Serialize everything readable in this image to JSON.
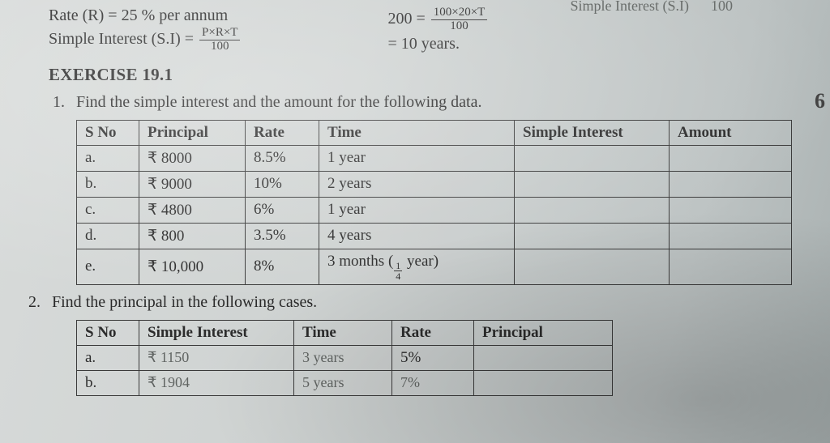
{
  "top": {
    "left_line1": "Rate (R) = 25 % per annum",
    "left_line2_prefix": "Simple Interest (S.I) = ",
    "left_frac_num": "P×R×T",
    "left_frac_den": "100",
    "right_partial_top": "Simple Interest (S.I)",
    "right_partial_num": "100",
    "right_line1_prefix": "200 = ",
    "right_frac_num": "100×20×T",
    "right_frac_den": "100",
    "right_line2": "= 10 years."
  },
  "exercise_heading": "EXERCISE 19.1",
  "q1": {
    "num": "1.",
    "text": "Find the simple interest and the amount for the following data."
  },
  "table1": {
    "headers": [
      "S No",
      "Principal",
      "Rate",
      "Time",
      "Simple Interest",
      "Amount"
    ],
    "rows": [
      [
        "a.",
        "₹ 8000",
        "8.5%",
        "1 year",
        "",
        ""
      ],
      [
        "b.",
        "₹ 9000",
        "10%",
        "2 years",
        "",
        ""
      ],
      [
        "c.",
        "₹ 4800",
        "6%",
        "1 year",
        "",
        ""
      ],
      [
        "d.",
        "₹ 800",
        "3.5%",
        "4 years",
        "",
        ""
      ],
      [
        "e.",
        "₹ 10,000",
        "8%",
        "3 months ( ¼ year)",
        "",
        ""
      ]
    ],
    "row_e_time_prefix": "3 months (",
    "row_e_time_frac_num": "1",
    "row_e_time_frac_den": "4",
    "row_e_time_suffix": " year)"
  },
  "q2": {
    "num": "2.",
    "text": "Find the principal in the following cases."
  },
  "table2": {
    "headers": [
      "S No",
      "Simple Interest",
      "Time",
      "Rate",
      "Principal"
    ],
    "rows": [
      [
        "a.",
        "₹ 1150",
        "3 years",
        "5%",
        ""
      ],
      [
        "b.",
        "₹ 1904",
        "5 years",
        "7%",
        ""
      ]
    ]
  },
  "edge_number": "6",
  "styling": {
    "page_bg_gradient": [
      "#d8dbda",
      "#cfd3d2",
      "#bcc2c2",
      "#a8b0b0"
    ],
    "text_color": "#2a2a2a",
    "border_color": "#3a3a3a",
    "body_fontsize_pt": 15,
    "header_fontsize_pt": 16,
    "font_family": "Times New Roman"
  }
}
